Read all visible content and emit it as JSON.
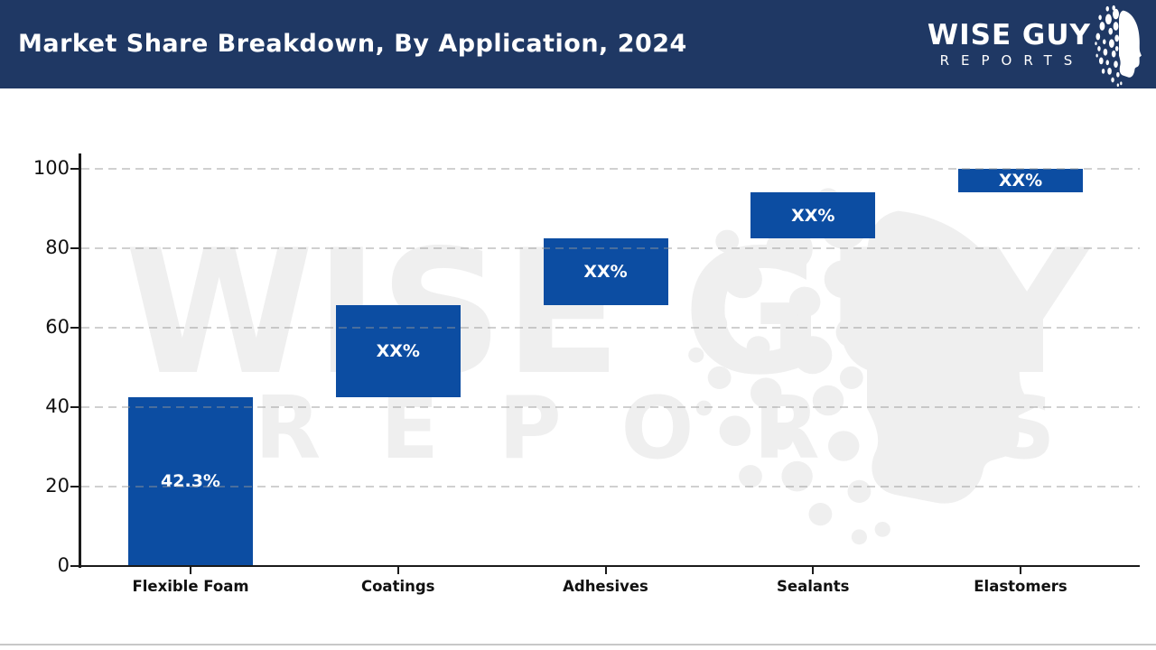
{
  "header": {
    "title": "Market Share Breakdown, By Application, 2024",
    "logo": {
      "line1": "WISE GUY",
      "line2": "REPORTS"
    }
  },
  "watermark": {
    "line1": "WISE GUY",
    "line2": "REPORTS"
  },
  "colors": {
    "header_bg": "#1F3864",
    "bar_blue": "#0C4DA2",
    "bar_label_white": "#FFFFFF",
    "watermark_gray": "#EFEFEF",
    "axis_black": "#1A1A1A"
  },
  "chart_data": {
    "type": "bar",
    "subtype": "waterfall",
    "title": "Market Share Breakdown, By Application, 2024",
    "xlabel": "",
    "ylabel": "",
    "ylim": [
      0,
      100
    ],
    "yticks": [
      0,
      20,
      40,
      60,
      80,
      100
    ],
    "grid": "horizontal-dashed-over-bars",
    "legend": "none",
    "categories": [
      "Flexible Foam",
      "Coatings",
      "Adhesives",
      "Sealants",
      "Elastomers"
    ],
    "bars": [
      {
        "category": "Flexible Foam",
        "start": 0,
        "end": 42.3,
        "label": "42.3%"
      },
      {
        "category": "Coatings",
        "start": 42.3,
        "end": 65.6,
        "label": "XX%"
      },
      {
        "category": "Adhesives",
        "start": 65.6,
        "end": 82.3,
        "label": "XX%"
      },
      {
        "category": "Sealants",
        "start": 82.3,
        "end": 93.9,
        "label": "XX%"
      },
      {
        "category": "Elastomers",
        "start": 93.9,
        "end": 100,
        "label": "XX%"
      }
    ],
    "bar_color": "#0C4DA2",
    "label_color": "#FFFFFF"
  }
}
